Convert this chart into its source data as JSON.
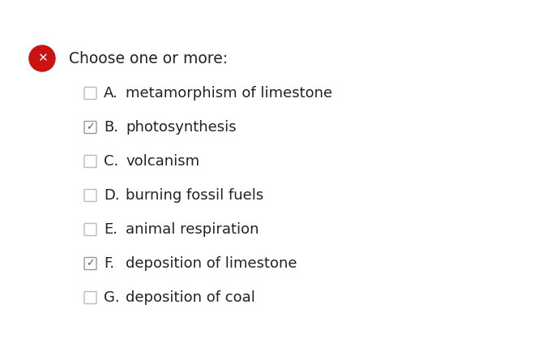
{
  "title": "Choose one or more:",
  "options": [
    {
      "letter": "A.",
      "text": "metamorphism of limestone",
      "checked": false
    },
    {
      "letter": "B.",
      "text": "photosynthesis",
      "checked": true
    },
    {
      "letter": "C.",
      "text": "volcanism",
      "checked": false
    },
    {
      "letter": "D.",
      "text": "burning fossil fuels",
      "checked": false
    },
    {
      "letter": "E.",
      "text": "animal respiration",
      "checked": false
    },
    {
      "letter": "F.",
      "text": "deposition of limestone",
      "checked": true
    },
    {
      "letter": "G.",
      "text": "deposition of coal",
      "checked": false
    }
  ],
  "background_color": "#ffffff",
  "text_color": "#222222",
  "title_fontsize": 13.5,
  "option_fontsize": 13,
  "icon_color": "#cc1111",
  "checked_border_color": "#999999",
  "unchecked_border_color": "#bbbbbb",
  "checkmark_color": "#555555"
}
